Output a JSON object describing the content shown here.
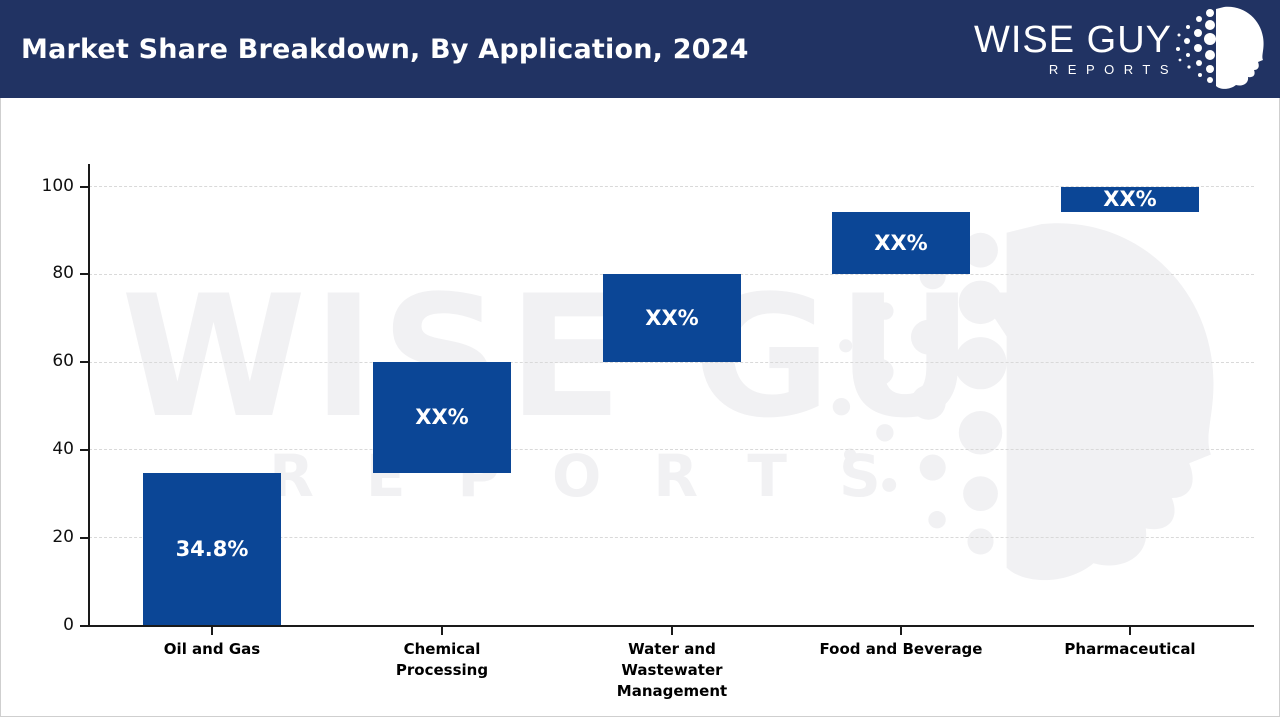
{
  "header": {
    "title": "Market Share Breakdown, By Application, 2024",
    "logo": {
      "line1": "WISE GUY",
      "line2": "REPORTS"
    }
  },
  "watermark": {
    "line1": "WISE GUY",
    "line2": "REPORTS"
  },
  "colors": {
    "header_bg": "#213363",
    "bar": "#0b4696",
    "gridline": "#d9d9d9",
    "axis": "#1a1a1a",
    "bar_label_text": "#ffffff",
    "watermark": "#f1f1f3"
  },
  "chart_data": {
    "type": "bar",
    "subtype": "waterfall",
    "title": "Market Share Breakdown, By Application, 2024",
    "categories": [
      "Oil and Gas",
      "Chemical Processing",
      "Water and Wastewater Management",
      "Food and Beverage",
      "Pharmaceutical"
    ],
    "tick_labels": [
      "Oil and Gas",
      "Chemical\nProcessing",
      "Water and\nWastewater\nManagement",
      "Food and Beverage",
      "Pharmaceutical"
    ],
    "segments": [
      {
        "category": "Oil and Gas",
        "start": 0,
        "end": 34.8,
        "label": "34.8%"
      },
      {
        "category": "Chemical Processing",
        "start": 34.8,
        "end": 60,
        "label": "XX%"
      },
      {
        "category": "Water and Wastewater Management",
        "start": 60,
        "end": 80,
        "label": "XX%"
      },
      {
        "category": "Food and Beverage",
        "start": 80,
        "end": 94.3,
        "label": "XX%"
      },
      {
        "category": "Pharmaceutical",
        "start": 94.3,
        "end": 100,
        "label": "XX%"
      }
    ],
    "xlabel": "",
    "ylabel": "",
    "ylim": [
      0,
      100
    ],
    "yticks": [
      0,
      20,
      40,
      60,
      80,
      100
    ],
    "grid": "horizontal-dashed",
    "legend": "none"
  }
}
